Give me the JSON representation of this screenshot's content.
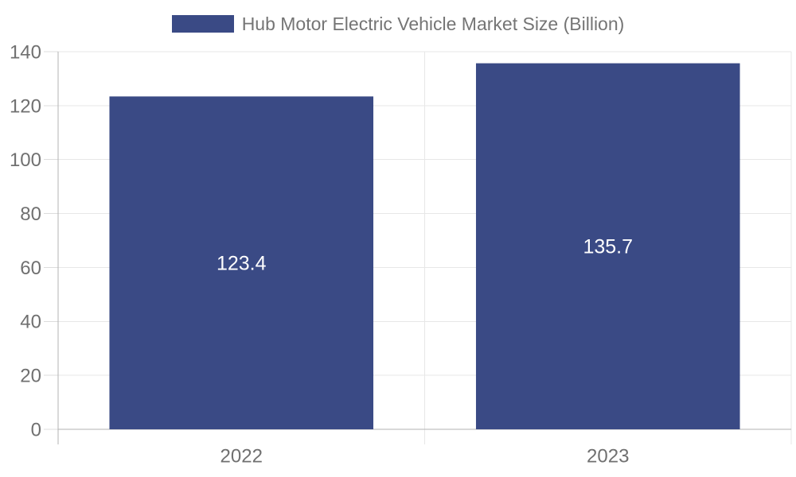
{
  "chart_data": {
    "type": "bar",
    "title": "Hub Motor Electric Vehicle Market Size (Billion)",
    "categories": [
      "2022",
      "2023"
    ],
    "values": [
      123.4,
      135.7
    ],
    "value_labels": [
      "123.4",
      "135.7"
    ],
    "xlabel": "",
    "ylabel": "",
    "ylim": [
      0,
      140
    ],
    "yticks": [
      0,
      20,
      40,
      60,
      80,
      100,
      120,
      140
    ],
    "grid": true,
    "legend_position": "top-center"
  },
  "colors": {
    "bar": "#3A4A85",
    "axis_line": "#b3b3b3",
    "grid_line": "#e7e7e7",
    "tick_line": "#dcdcdc",
    "tick_label": "#707070",
    "legend_text": "#757575",
    "value_label": "#ffffff",
    "background": "#ffffff"
  }
}
